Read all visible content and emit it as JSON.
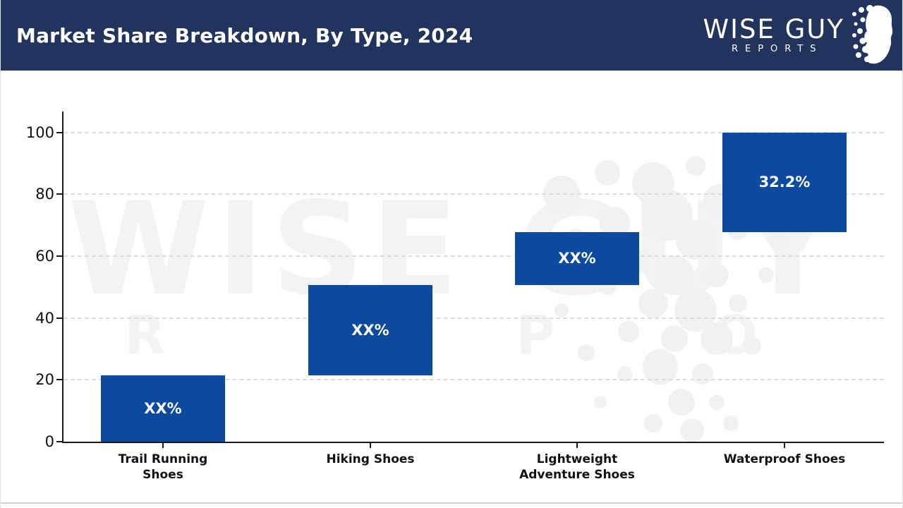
{
  "header": {
    "title": "Market Share Breakdown, By Type, 2024",
    "bg_color": "#21345e",
    "logo": {
      "line1": "WISE GUY",
      "line2": "REPORTS"
    }
  },
  "watermark": {
    "line1": "WISE GUY",
    "line2": "R E P O R T S"
  },
  "chart_data": {
    "type": "bar",
    "variant": "floating-waterfall-segments",
    "title": "Market Share Breakdown, By Type, 2024",
    "categories": [
      "Trail Running Shoes",
      "Hiking Shoes",
      "Lightweight Adventure Shoes",
      "Waterproof Shoes"
    ],
    "category_lines": [
      [
        "Trail Running",
        "Shoes"
      ],
      [
        "Hiking Shoes"
      ],
      [
        "Lightweight",
        "Adventure Shoes"
      ],
      [
        "Waterproof Shoes"
      ]
    ],
    "bars": [
      {
        "category": "Trail Running Shoes",
        "start": 0,
        "end": 21.5,
        "label": "XX%"
      },
      {
        "category": "Hiking Shoes",
        "start": 21.5,
        "end": 50.7,
        "label": "XX%"
      },
      {
        "category": "Lightweight Adventure Shoes",
        "start": 50.7,
        "end": 67.8,
        "label": "XX%"
      },
      {
        "category": "Waterproof Shoes",
        "start": 67.8,
        "end": 100,
        "label": "32.2%"
      }
    ],
    "yticks": [
      0,
      20,
      40,
      60,
      80,
      100
    ],
    "ylim": [
      0,
      106
    ],
    "xlabel": "",
    "ylabel": "",
    "grid": "horizontal-dashed",
    "legend": "none",
    "bar_color": "#0b4a9e",
    "bar_label_color": "#ffffff"
  }
}
